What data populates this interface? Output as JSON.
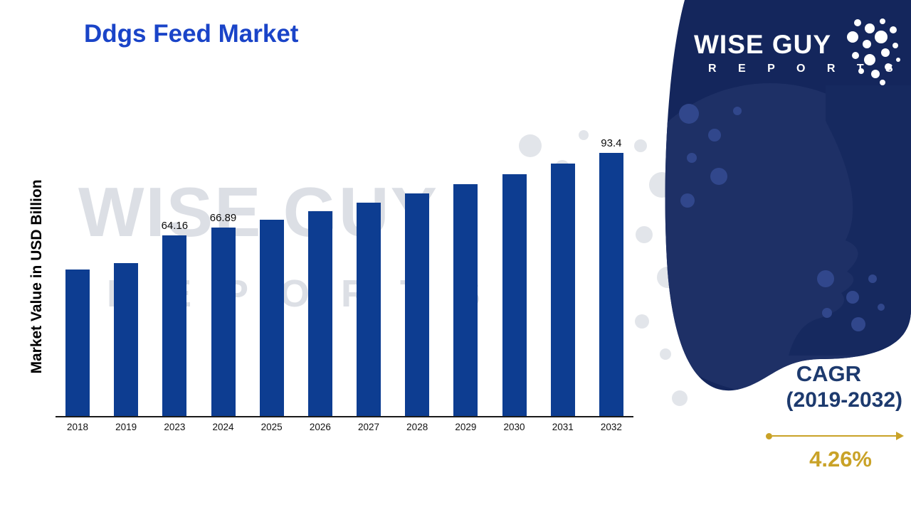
{
  "title": "Ddgs Feed Market",
  "brand": {
    "name": "WISE GUY",
    "sub": "R E P O R T S"
  },
  "watermark": {
    "line1": "WISE GUY",
    "line2": "REPORTS"
  },
  "cagr": {
    "label": "CAGR",
    "range": "(2019-2032)",
    "value": "4.26%"
  },
  "chart_data": {
    "type": "bar",
    "title": "Ddgs Feed Market",
    "xlabel": "",
    "ylabel": "Market Value in USD Billion",
    "categories": [
      "2018",
      "2019",
      "2023",
      "2024",
      "2025",
      "2026",
      "2027",
      "2028",
      "2029",
      "2030",
      "2031",
      "2032"
    ],
    "values": [
      52.1,
      54.3,
      64.16,
      66.89,
      69.74,
      72.71,
      75.81,
      79.04,
      82.4,
      85.91,
      89.57,
      93.4
    ],
    "data_labels": {
      "2023": "64.16",
      "2024": "66.89",
      "2032": "93.4"
    },
    "ylim": [
      0,
      100
    ],
    "grid": false,
    "legend": "none",
    "bar_color": "#0d3d91",
    "axis_color": "#1a1a1a"
  }
}
